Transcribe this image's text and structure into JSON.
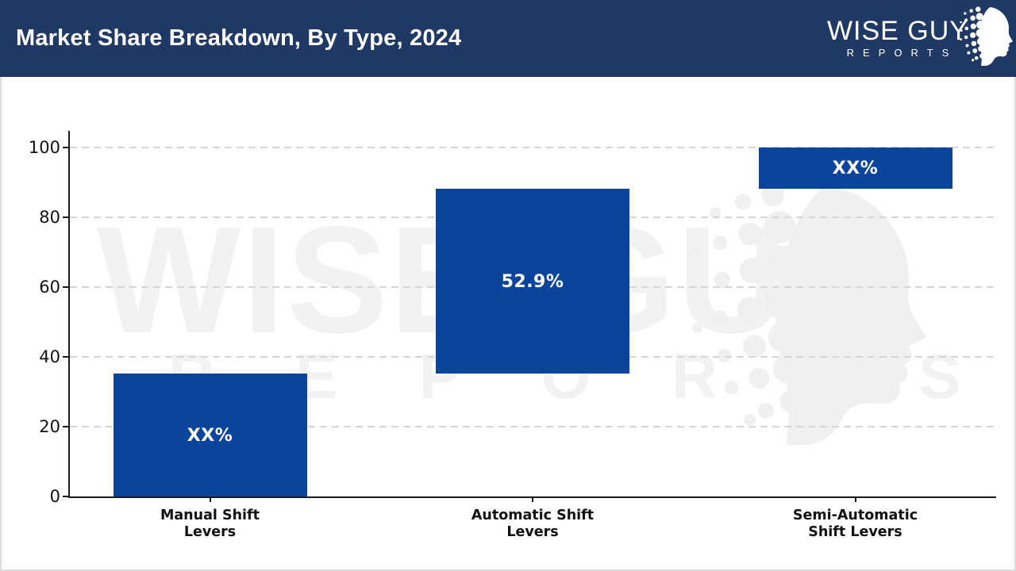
{
  "header": {
    "title": "Market Share Breakdown, By Type, 2024",
    "bg_color": "#203864",
    "logo": {
      "name": "WISE GUY",
      "sub": "REPORTS"
    }
  },
  "watermark": {
    "line1": "WISE GUY",
    "line2": "R E P O R T S"
  },
  "chart_data": {
    "type": "bar",
    "subtype": "stacked-waterfall-segments",
    "title": "Market Share Breakdown, By Type, 2024",
    "categories": [
      [
        "Manual Shift",
        "Levers"
      ],
      [
        "Automatic Shift",
        "Levers"
      ],
      [
        "Semi-Automatic",
        "Shift Levers"
      ]
    ],
    "segments": [
      {
        "category": "Manual Shift Levers",
        "start": 0,
        "end": 35.2,
        "value_label": "XX%"
      },
      {
        "category": "Automatic Shift Levers",
        "start": 35.2,
        "end": 88.1,
        "value_label": "52.9%"
      },
      {
        "category": "Semi-Automatic Shift Levers",
        "start": 88.1,
        "end": 100,
        "value_label": "XX%"
      }
    ],
    "ylim": [
      0,
      100
    ],
    "yticks": [
      0,
      20,
      40,
      60,
      80,
      100
    ],
    "grid": "horizontal-dashed",
    "legend": "none",
    "bar_color": "#0a449c",
    "bar_label_color": "#ffffff",
    "axis_color": "#1a1a1a",
    "grid_color": "#d6d6d6",
    "watermark_color": "#f2f2f2"
  }
}
